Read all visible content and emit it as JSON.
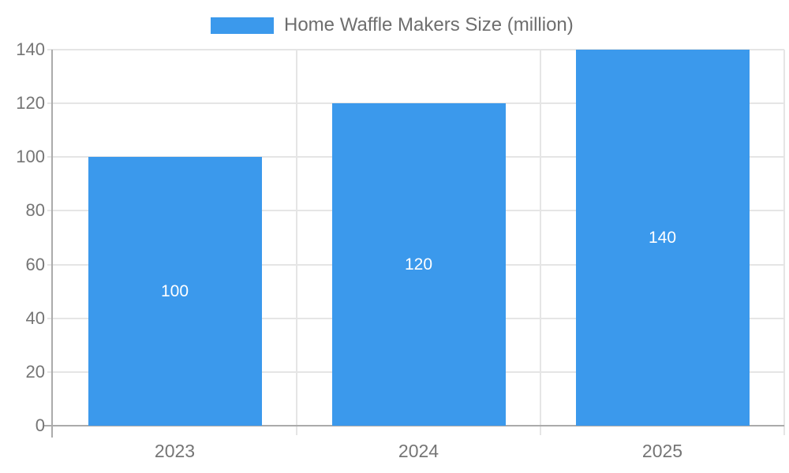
{
  "legend": {
    "label": "Home Waffle Makers Size (million)"
  },
  "chart_data": {
    "type": "bar",
    "title": "Home Waffle Makers Size (million)",
    "categories": [
      "2023",
      "2024",
      "2025"
    ],
    "values": [
      100,
      120,
      140
    ],
    "data_labels": [
      "100",
      "120",
      "140"
    ],
    "xlabel": "",
    "ylabel": "",
    "ylim": [
      0,
      140
    ],
    "ytick_step": 20,
    "ytick_labels": [
      "0",
      "20",
      "40",
      "60",
      "80",
      "100",
      "120",
      "140"
    ],
    "grid": true,
    "legend_position": "top-center",
    "colors": {
      "bar": "#3B99EC",
      "data_label": "#FFFFFF",
      "axis_text": "#757575",
      "legend_text": "#6E6E6E",
      "axis_line": "#ABABAB",
      "gridline": "#E5E5E5",
      "background": "#FFFFFF"
    }
  }
}
